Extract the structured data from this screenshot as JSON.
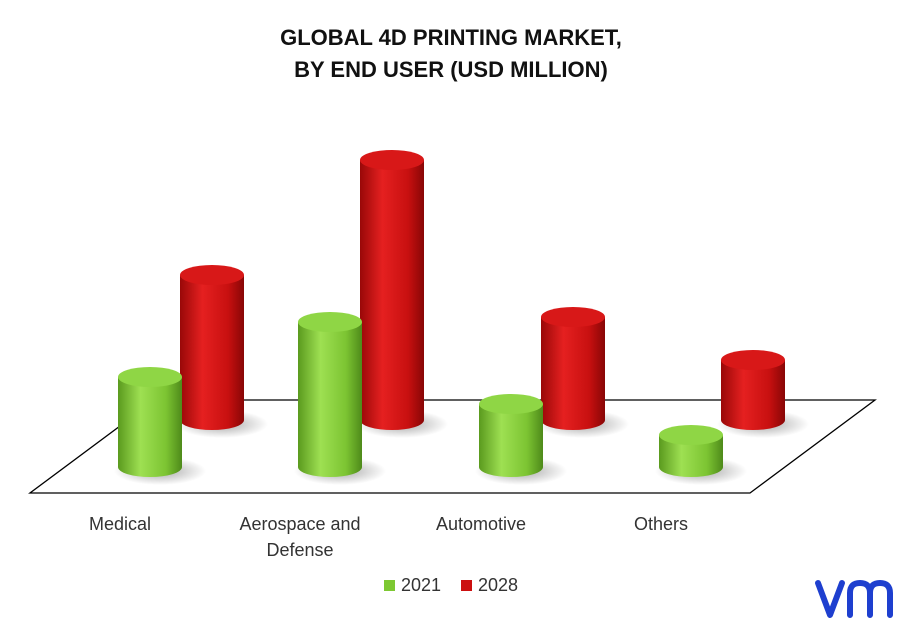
{
  "title": {
    "line1": "GLOBAL 4D PRINTING MARKET,",
    "line2": "BY END USER (USD MILLION)"
  },
  "legend": [
    {
      "label": "2021",
      "color": "#7dc832"
    },
    {
      "label": "2028",
      "color": "#cc1010"
    }
  ],
  "logo_text": "vmr",
  "chart_data": {
    "type": "bar",
    "style": "3d-cylinder",
    "title": "GLOBAL 4D PRINTING MARKET, BY END USER (USD MILLION)",
    "categories": [
      "Medical",
      "Aerospace and Defense",
      "Automotive",
      "Others"
    ],
    "series": [
      {
        "name": "2021",
        "color": "#7dc832",
        "values": [
          90,
          145,
          63,
          32
        ]
      },
      {
        "name": "2028",
        "color": "#cc1010",
        "values": [
          145,
          260,
          103,
          60
        ]
      }
    ],
    "legend": "bottom",
    "grid": false
  }
}
